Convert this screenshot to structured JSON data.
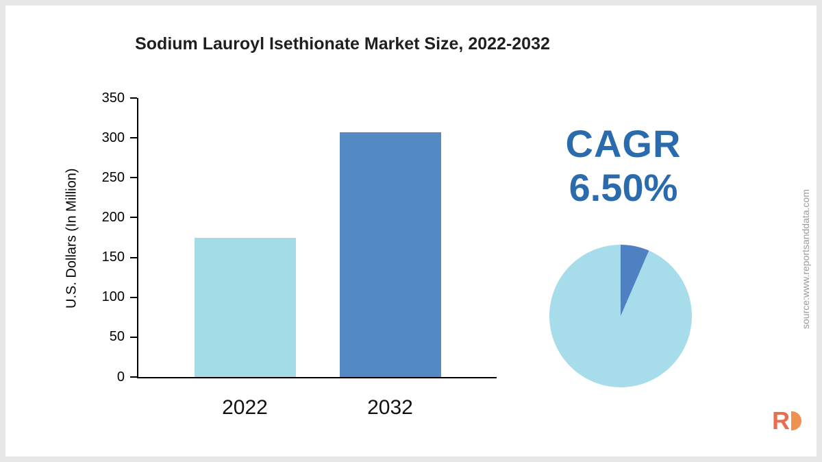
{
  "title": "Sodium Lauroyl Isethionate Market Size, 2022-2032",
  "chart_data": [
    {
      "type": "bar",
      "title": "Sodium Lauroyl Isethionate Market Size, 2022-2032",
      "categories": [
        "2022",
        "2032"
      ],
      "values": [
        175,
        307
      ],
      "xlabel": "",
      "ylabel": "U.S. Dollars (In Million)",
      "ylim": [
        0,
        350
      ],
      "yticks": [
        0,
        50,
        100,
        150,
        200,
        250,
        300,
        350
      ],
      "bar_colors": [
        "#a3dbe6",
        "#5589c4"
      ],
      "grid": false,
      "legend": false
    },
    {
      "type": "pie",
      "slices": [
        {
          "label": "CAGR",
          "value": 6.5,
          "color": "#4f80c2"
        },
        {
          "label": "remainder",
          "value": 93.5,
          "color": "#a7dcea"
        }
      ],
      "start_angle_deg": 0,
      "legend": false
    }
  ],
  "cagr": {
    "label": "CAGR",
    "value": "6.50%",
    "color": "#2a6bad"
  },
  "source": "source:www.reportsanddata.com",
  "logo": {
    "letter": "R"
  }
}
